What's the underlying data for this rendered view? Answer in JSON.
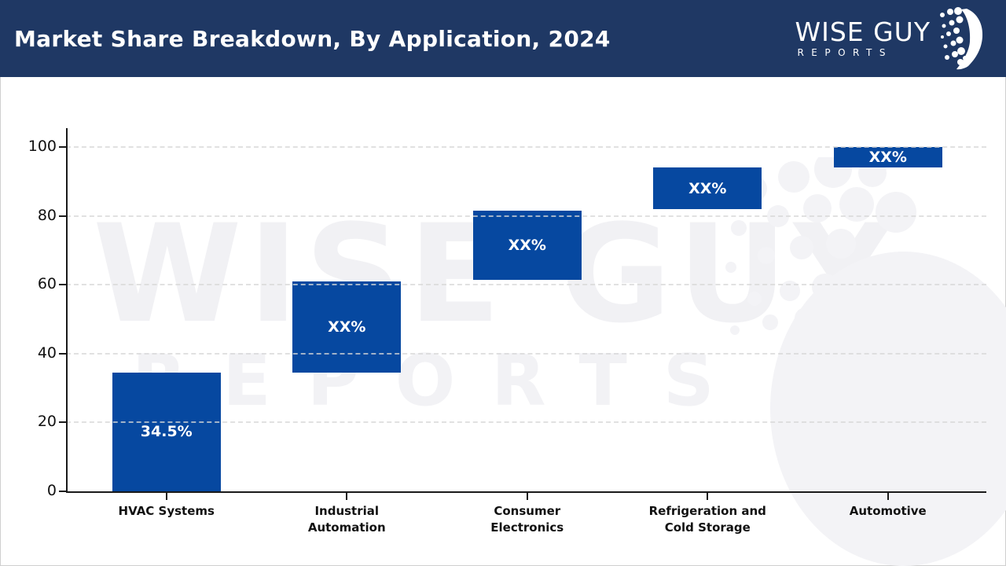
{
  "header": {
    "title": "Market Share Breakdown, By Application, 2024",
    "logo": {
      "name": "WISE GUY",
      "subtitle": "REPORTS"
    }
  },
  "watermark": {
    "line1": "WISE GUY",
    "line2": "REPORTS"
  },
  "colors": {
    "header_bg": "#1f3864",
    "bar_fill": "#0648a0",
    "grid": "#d9d9d9",
    "axis": "#1a1a1a",
    "bar_label": "#ffffff",
    "watermark": "#f1f1f4"
  },
  "chart_data": {
    "type": "bar",
    "subtype": "waterfall",
    "title": "Market Share Breakdown, By Application, 2024",
    "xlabel": "",
    "ylabel": "",
    "ylim": [
      0,
      106
    ],
    "yticks": [
      0,
      20,
      40,
      60,
      80,
      100
    ],
    "grid": "horizontal-dashed",
    "legend": "none",
    "categories": [
      "HVAC Systems",
      "Industrial Automation",
      "Consumer Electronics",
      "Refrigeration and Cold Storage",
      "Automotive"
    ],
    "bars": [
      {
        "category": "HVAC Systems",
        "start": 0,
        "end": 34.5,
        "label": "34.5%"
      },
      {
        "category": "Industrial Automation",
        "start": 34.5,
        "end": 61,
        "label": "XX%"
      },
      {
        "category": "Consumer Electronics",
        "start": 61.5,
        "end": 81.5,
        "label": "XX%"
      },
      {
        "category": "Refrigeration and Cold Storage",
        "start": 82,
        "end": 94,
        "label": "XX%"
      },
      {
        "category": "Automotive",
        "start": 94,
        "end": 100,
        "label": "XX%"
      }
    ]
  }
}
